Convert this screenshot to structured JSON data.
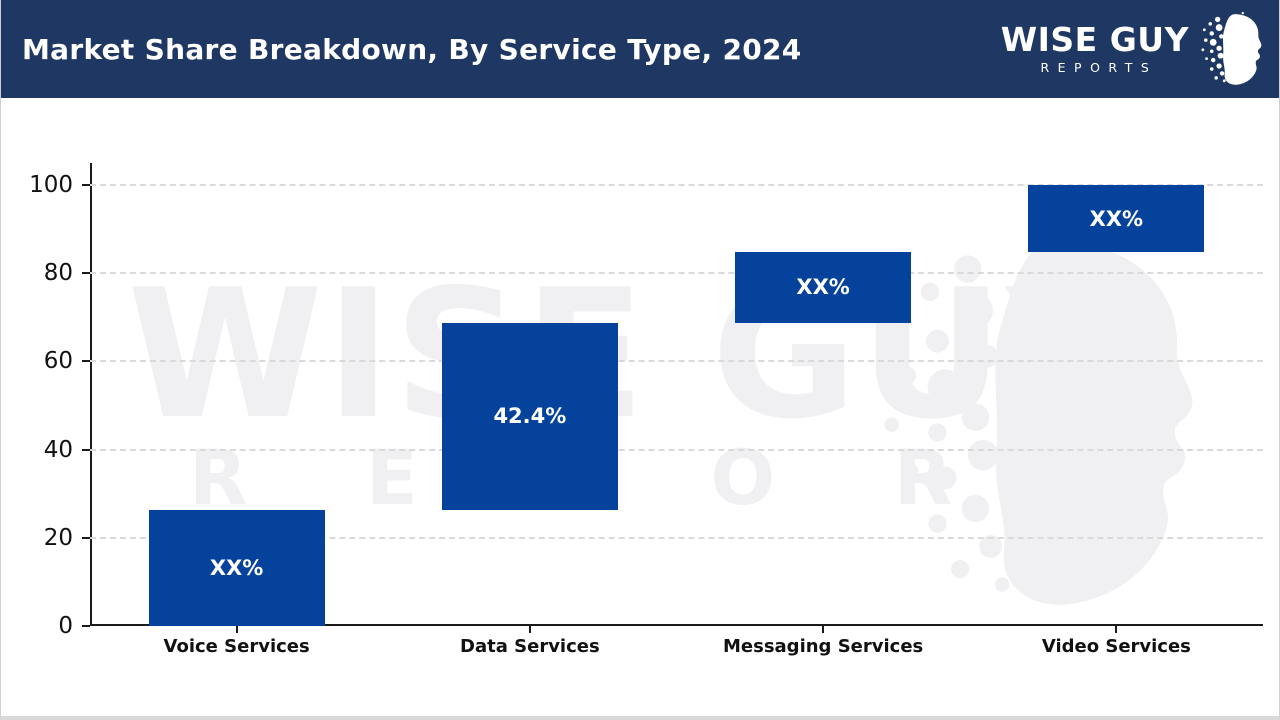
{
  "header": {
    "title": "Market Share Breakdown, By Service Type, 2024",
    "logo": {
      "line1": "WISE GUY",
      "line2": "REPORTS"
    },
    "bg_color": "#1f3763"
  },
  "watermark": {
    "line1": "WISE GUY",
    "line2": "R E P O R T S"
  },
  "chart_data": {
    "type": "bar",
    "subtype": "waterfall",
    "title": "Market Share Breakdown, By Service Type, 2024",
    "categories": [
      "Voice Services",
      "Data Services",
      "Messaging Services",
      "Video Services"
    ],
    "series": [
      {
        "name": "Market share (%)",
        "segments": [
          {
            "category": "Voice Services",
            "base": 0,
            "value": 26.4,
            "label": "XX%"
          },
          {
            "category": "Data Services",
            "base": 26.4,
            "value": 42.4,
            "label": "42.4%"
          },
          {
            "category": "Messaging Services",
            "base": 68.8,
            "value": 16.0,
            "label": "XX%"
          },
          {
            "category": "Video Services",
            "base": 84.8,
            "value": 15.2,
            "label": "XX%"
          }
        ]
      }
    ],
    "displayed_bar_labels": [
      "XX%",
      "42.4%",
      "XX%",
      "XX%"
    ],
    "xlabel": "",
    "ylabel": "",
    "ylim": [
      0,
      105
    ],
    "yticks": [
      0,
      20,
      40,
      60,
      80,
      100
    ],
    "grid": "horizontal dashed",
    "legend": "none",
    "bar_color": "#05429b",
    "label_color": "#ffffff"
  }
}
